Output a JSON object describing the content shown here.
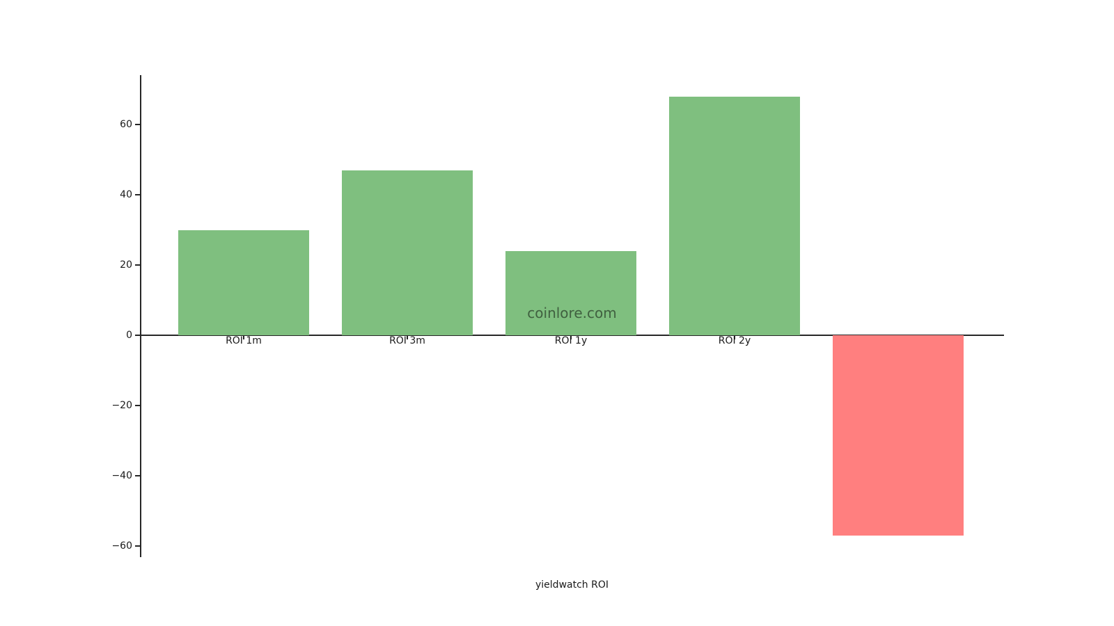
{
  "watermark": "coinlore.com",
  "chart_data": {
    "type": "bar",
    "title": "",
    "xlabel": "yieldwatch ROI",
    "ylabel": "",
    "categories": [
      "ROI 1m",
      "ROI 3m",
      "ROI 1y",
      "ROI 2y",
      ""
    ],
    "values": [
      30,
      47,
      24,
      68,
      -57
    ],
    "yticks": [
      60,
      40,
      20,
      0,
      -20,
      -40,
      -60
    ],
    "ytick_labels": [
      "60",
      "40",
      "20",
      "0",
      "−20",
      "−40",
      "−60"
    ],
    "ylim": [
      -63.2,
      74.1
    ],
    "grid": false,
    "legend_position": "none",
    "positive_color": "#7fbf7f",
    "negative_color": "#ff7f7f",
    "axis_color": "#262626",
    "tick_text_color": "#1a1a1a",
    "watermark_color": "rgba(0,0,0,0.5)",
    "background_color": "#ffffff"
  }
}
